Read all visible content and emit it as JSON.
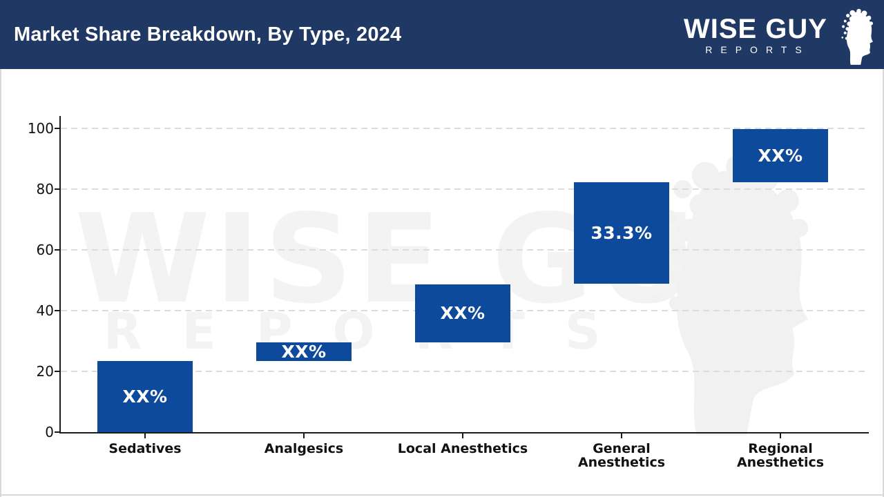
{
  "header": {
    "title": "Market Share Breakdown, By Type, 2024",
    "bg_color": "#203864",
    "logo": {
      "line1": "WISE GUY",
      "line2": "REPORTS"
    }
  },
  "watermark": {
    "line1": "WISE GUY",
    "line2": "REPORTS"
  },
  "chart_data": {
    "type": "bar",
    "subtype": "waterfall",
    "title": "Market Share Breakdown, By Type, 2024",
    "categories": [
      "Sedatives",
      "Analgesics",
      "Local Anesthetics",
      "General Anesthetics",
      "Regional Anesthetics"
    ],
    "category_lines": [
      "Sedatives",
      "Analgesics",
      "Local Anesthetics",
      "General\nAnesthetics",
      "Regional\nAnesthetics"
    ],
    "segments": [
      {
        "category": "Sedatives",
        "start": 0,
        "end": 23.5,
        "label": "XX%"
      },
      {
        "category": "Analgesics",
        "start": 23.5,
        "end": 29.5,
        "label": "XX%"
      },
      {
        "category": "Local Anesthetics",
        "start": 29.5,
        "end": 48.7,
        "label": "XX%"
      },
      {
        "category": "General Anesthetics",
        "start": 48.9,
        "end": 82.2,
        "label": "33.3%"
      },
      {
        "category": "Regional Anesthetics",
        "start": 82.2,
        "end": 99.8,
        "label": "XX%"
      }
    ],
    "yticks": [
      0,
      20,
      40,
      60,
      80,
      100
    ],
    "ylim": [
      0,
      104
    ],
    "xlabel": "",
    "ylabel": "",
    "grid": "horizontal-dashed",
    "legend": "none",
    "bar_color": "#0d4a9c",
    "label_color": "#ffffff"
  }
}
